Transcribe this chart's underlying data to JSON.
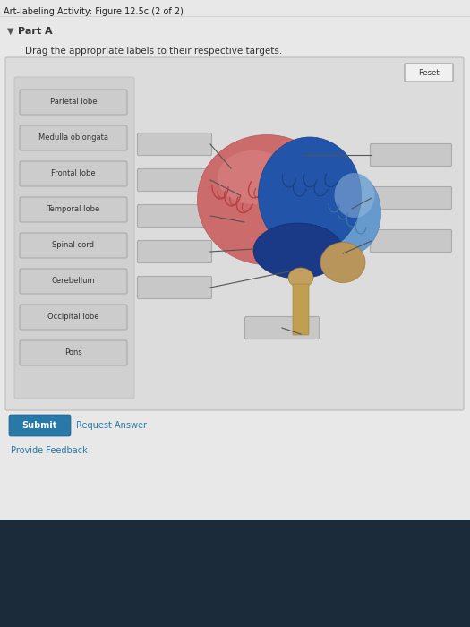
{
  "title": "Art-labeling Activity: Figure 12.5c (2 of 2)",
  "part_label": "Part A",
  "instruction": "Drag the appropriate labels to their respective targets.",
  "page_bg": "#e8e8e8",
  "panel_bg": "#dcdcdc",
  "left_col_bg": "#d0d0d0",
  "left_labels": [
    "Parietal lobe",
    "Medulla oblongata",
    "Frontal lobe",
    "Temporal lobe",
    "Spinal cord",
    "Cerebellum",
    "Occipital lobe",
    "Pons"
  ],
  "label_box_color": "#cccccc",
  "label_box_edge": "#aaaaaa",
  "answer_box_color": "#c8c8c8",
  "answer_box_edge": "#aaaaaa",
  "submit_bg": "#2878a8",
  "submit_text": "Submit",
  "request_answer_text": "Request Answer",
  "provide_feedback_text": "Provide Feedback",
  "reset_text": "Reset",
  "footer_bg": "#1c2b3a",
  "brain_pink": "#d07070",
  "brain_pink_light": "#e8a0a0",
  "brain_blue_dark": "#2244a0",
  "brain_blue_mid": "#3366cc",
  "brain_blue_light": "#6699cc",
  "brain_blue_pale": "#88bbdd",
  "brain_tan": "#c8a060",
  "brain_tan2": "#b89050",
  "line_color": "#555555"
}
